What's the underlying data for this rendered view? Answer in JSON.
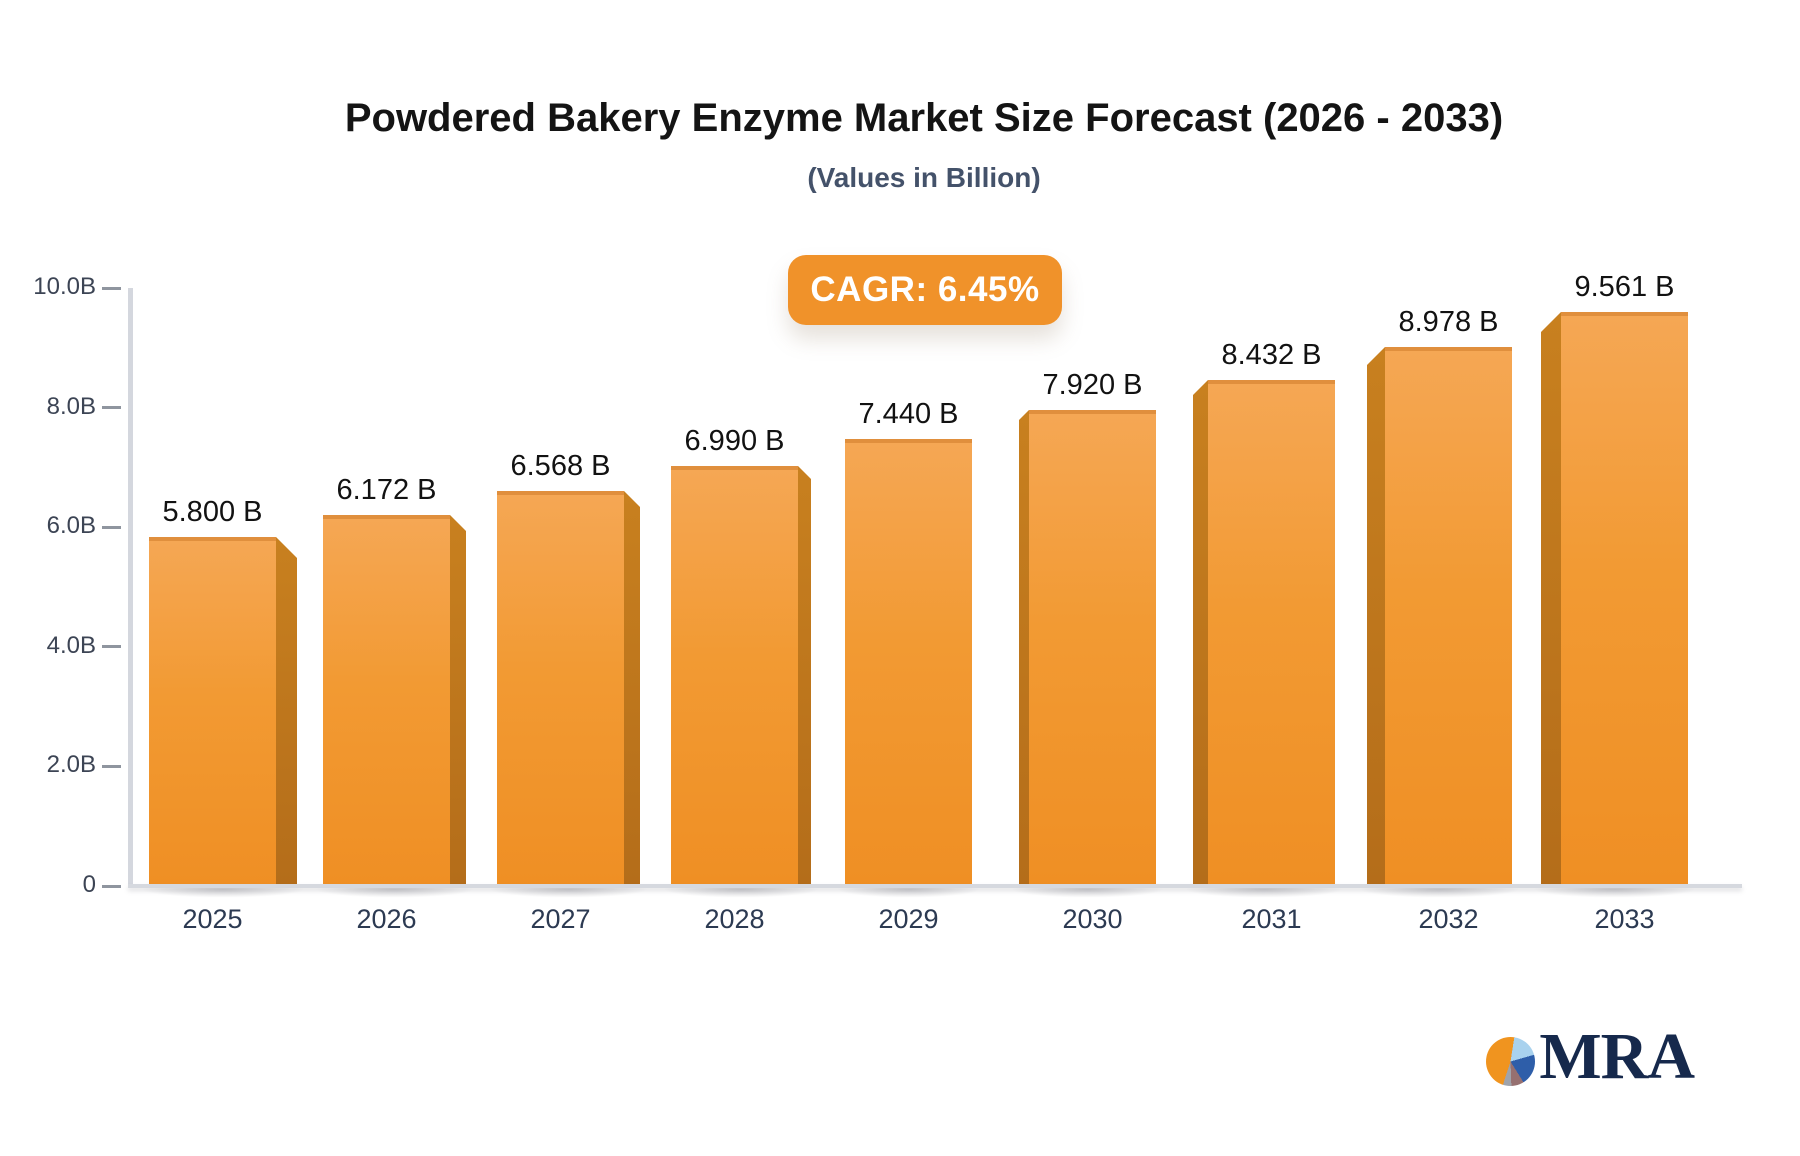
{
  "header": {
    "title": "Powdered Bakery Enzyme Market Size Forecast (2026 - 2033)",
    "subtitle": "(Values in Billion)"
  },
  "badge": {
    "label": "CAGR: 6.45%"
  },
  "chart_data": {
    "type": "bar",
    "title": "Powdered Bakery Enzyme Market Size Forecast (2026 - 2033)",
    "subtitle": "(Values in Billion)",
    "unit": "Billion",
    "cagr": "6.45%",
    "categories": [
      "2025",
      "2026",
      "2027",
      "2028",
      "2029",
      "2030",
      "2031",
      "2032",
      "2033"
    ],
    "values": [
      5.8,
      6.172,
      6.568,
      6.99,
      7.44,
      7.92,
      8.432,
      8.978,
      9.561
    ],
    "value_labels": [
      "5.800 B",
      "6.172 B",
      "6.568 B",
      "6.990 B",
      "7.440 B",
      "7.920 B",
      "8.432 B",
      "8.978 B",
      "9.561 B"
    ],
    "xlabel": "",
    "ylabel": "",
    "ylim": [
      0,
      10
    ],
    "yticks": [
      {
        "value": 0,
        "label": "0"
      },
      {
        "value": 2,
        "label": "2.0B"
      },
      {
        "value": 4,
        "label": "4.0B"
      },
      {
        "value": 6,
        "label": "6.0B"
      },
      {
        "value": 8,
        "label": "8.0B"
      },
      {
        "value": 10,
        "label": "10.0B"
      }
    ],
    "grid": "off",
    "legend": "none",
    "bar_style": "3d-perspective"
  },
  "colors": {
    "bar_face_top": "#f5a754",
    "bar_face_bottom": "#ef8f24",
    "bar_side": "#b9701d",
    "badge_background": "#f0922a",
    "axis_line": "#d6d9df",
    "tick_label": "#3c4454",
    "category_label": "#2c3a52",
    "title_text": "#141414",
    "subtitle_text": "#44526a",
    "logo_navy": "#16294c",
    "logo_orange": "#f0941f"
  },
  "logo": {
    "icon": "pie-chart-icon",
    "text": "MRA"
  }
}
